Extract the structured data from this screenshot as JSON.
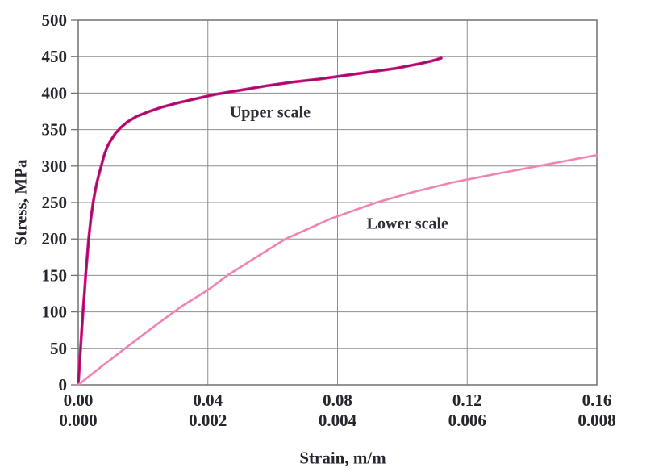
{
  "chart_data": {
    "type": "line",
    "title": "",
    "xlabel": "Strain, m/m",
    "ylabel": "Stress, MPa",
    "grid": true,
    "background": "#ffffff",
    "grid_color": "#8e8e8e",
    "border_color": "#707070",
    "y_axis": {
      "range": [
        0,
        500
      ],
      "tick_values": [
        0,
        50,
        100,
        150,
        200,
        250,
        300,
        350,
        400,
        450,
        500
      ],
      "tick_labels": [
        "0",
        "50",
        "100",
        "150",
        "200",
        "250",
        "300",
        "350",
        "400",
        "450",
        "500"
      ]
    },
    "x_axis_upper": {
      "range": [
        0,
        0.16
      ],
      "tick_values": [
        0.0,
        0.04,
        0.08,
        0.12,
        0.16
      ],
      "tick_labels": [
        "0.00",
        "0.04",
        "0.08",
        "0.12",
        "0.16"
      ]
    },
    "x_axis_lower": {
      "range": [
        0,
        0.008
      ],
      "tick_values": [
        0.0,
        0.002,
        0.004,
        0.006,
        0.008
      ],
      "tick_labels": [
        "0.000",
        "0.002",
        "0.004",
        "0.006",
        "0.008"
      ]
    },
    "series": [
      {
        "name": "Upper scale",
        "scale": "upper",
        "color": "#dd1687",
        "core_color": "#8f1060",
        "width": 3.6,
        "points": [
          [
            0,
            0
          ],
          [
            0.0004,
            28
          ],
          [
            0.0008,
            55
          ],
          [
            0.0012,
            82
          ],
          [
            0.0016,
            108
          ],
          [
            0.002,
            130
          ],
          [
            0.0023,
            150
          ],
          [
            0.0028,
            178
          ],
          [
            0.0032,
            200
          ],
          [
            0.0039,
            228
          ],
          [
            0.0046,
            250
          ],
          [
            0.0052,
            265
          ],
          [
            0.0058,
            278
          ],
          [
            0.0065,
            290
          ],
          [
            0.0071,
            300
          ],
          [
            0.008,
            315
          ],
          [
            0.009,
            327
          ],
          [
            0.01,
            335
          ],
          [
            0.0115,
            345
          ],
          [
            0.0132,
            353
          ],
          [
            0.015,
            360
          ],
          [
            0.018,
            368
          ],
          [
            0.022,
            375
          ],
          [
            0.026,
            381
          ],
          [
            0.031,
            387
          ],
          [
            0.037,
            393
          ],
          [
            0.042,
            398
          ],
          [
            0.05,
            404
          ],
          [
            0.058,
            410
          ],
          [
            0.066,
            415
          ],
          [
            0.074,
            419
          ],
          [
            0.082,
            424
          ],
          [
            0.09,
            429
          ],
          [
            0.098,
            434
          ],
          [
            0.105,
            440
          ],
          [
            0.109,
            444
          ],
          [
            0.112,
            448
          ]
        ]
      },
      {
        "name": "Lower scale",
        "scale": "lower",
        "color": "#f095bf",
        "core_color": "#ec7fb0",
        "width": 2.8,
        "points": [
          [
            0,
            0
          ],
          [
            0.0004,
            28
          ],
          [
            0.0008,
            55
          ],
          [
            0.0012,
            82
          ],
          [
            0.0016,
            108
          ],
          [
            0.002,
            130
          ],
          [
            0.0023,
            150
          ],
          [
            0.0028,
            178
          ],
          [
            0.0032,
            200
          ],
          [
            0.0039,
            228
          ],
          [
            0.0046,
            250
          ],
          [
            0.0052,
            265
          ],
          [
            0.0058,
            278
          ],
          [
            0.0065,
            290
          ],
          [
            0.0071,
            300
          ],
          [
            0.008,
            315
          ]
        ]
      }
    ],
    "annotations": [
      {
        "text": "Upper scale",
        "fx": 0.37,
        "fy": 0.255
      },
      {
        "text": "Lower scale",
        "fx": 0.635,
        "fy": 0.56
      }
    ],
    "legend": "none"
  }
}
